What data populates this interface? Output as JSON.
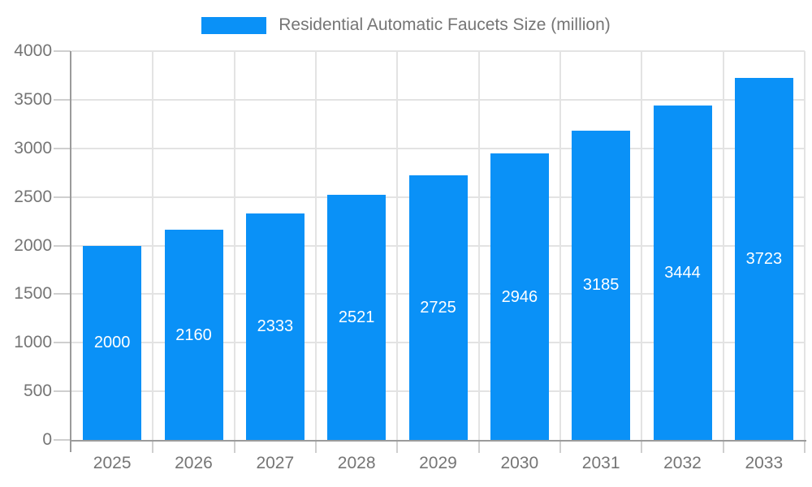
{
  "legend": {
    "label": "Residential Automatic Faucets Size (million)"
  },
  "colors": {
    "bar": "#0a91f7",
    "bar_label": "#ffffff",
    "axis_text": "#757575",
    "grid_line": "#e3e3e3",
    "tick_line": "#cfcfcf",
    "axis_line": "#9b9b9b"
  },
  "chart_data": {
    "type": "bar",
    "title": "Residential Automatic Faucets Size (million)",
    "categories": [
      "2025",
      "2026",
      "2027",
      "2028",
      "2029",
      "2030",
      "2031",
      "2032",
      "2033"
    ],
    "values": [
      2000,
      2160,
      2333,
      2521,
      2725,
      2946,
      3185,
      3444,
      3723
    ],
    "xlabel": "",
    "ylabel": "",
    "ylim": [
      0,
      4000
    ],
    "yticks": [
      0,
      500,
      1000,
      1500,
      2000,
      2500,
      3000,
      3500,
      4000
    ],
    "grid": true,
    "legend_position": "top-center",
    "bar_value_labels": "inside-center"
  }
}
